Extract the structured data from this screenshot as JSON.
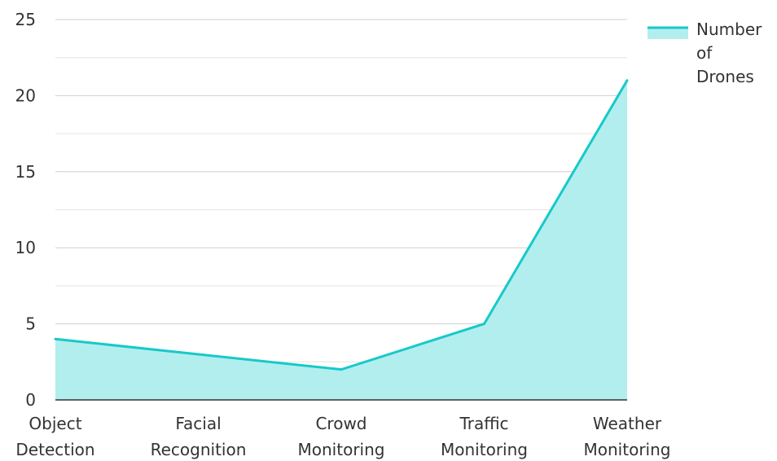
{
  "chart_data": {
    "type": "area",
    "categories": [
      [
        "Object",
        "Detection"
      ],
      [
        "Facial",
        "Recognition"
      ],
      [
        "Crowd",
        "Monitoring"
      ],
      [
        "Traffic",
        "Monitoring"
      ],
      [
        "Weather",
        "Monitoring"
      ]
    ],
    "series": [
      {
        "name": "Number of Drones",
        "legend_lines": [
          "Number",
          "of",
          "Drones"
        ],
        "values": [
          4,
          3,
          2,
          5,
          21
        ],
        "line_color": "#17c9c9",
        "fill_color": "#b2eeee"
      }
    ],
    "title": "",
    "xlabel": "",
    "ylabel": "",
    "ylim": [
      0,
      25
    ],
    "yticks": [
      0,
      5,
      10,
      15,
      20,
      25
    ],
    "grid": true,
    "legend_position": "top-right"
  }
}
